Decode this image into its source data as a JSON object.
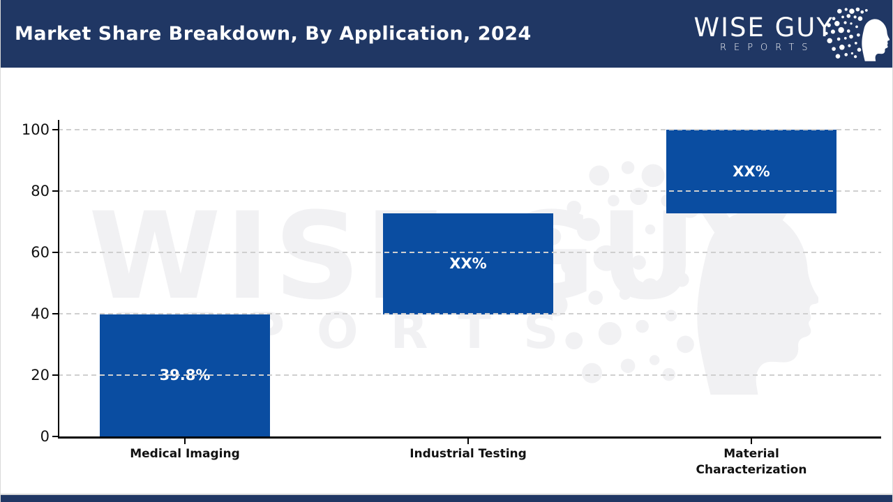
{
  "header": {
    "title": "Market Share Breakdown, By Application, 2024",
    "logo": {
      "line1": "WISE GUY",
      "line2": "REPORTS"
    }
  },
  "watermark": {
    "line1": "WISE GUY",
    "line2": "REPORTS"
  },
  "colors": {
    "header_bg": "#203764",
    "footer_bg": "#203764",
    "bar": "#0A4DA1",
    "bar_label": "#FFFFFF",
    "grid": "#CFCFCF",
    "axis": "#000000",
    "tick_text": "#111111",
    "watermark": "#F1F1F3"
  },
  "chart_data": {
    "type": "bar",
    "variant": "waterfall",
    "title": "Market Share Breakdown, By Application, 2024",
    "categories": [
      "Medical Imaging",
      "Industrial Testing",
      "Material Characterization"
    ],
    "segments": [
      {
        "category": "Medical Imaging",
        "start": 0,
        "end": 39.8,
        "label": "39.8%"
      },
      {
        "category": "Industrial Testing",
        "start": 39.8,
        "end": 72.8,
        "label": "XX%"
      },
      {
        "category": "Material Characterization",
        "start": 72.8,
        "end": 100,
        "label": "XX%"
      }
    ],
    "yticks": [
      0,
      20,
      40,
      60,
      80,
      100
    ],
    "ylim": [
      0,
      100
    ],
    "xlabel": "",
    "ylabel": "",
    "grid": "horizontal-dashed",
    "legend": null,
    "bar_color": "#0A4DA1"
  }
}
